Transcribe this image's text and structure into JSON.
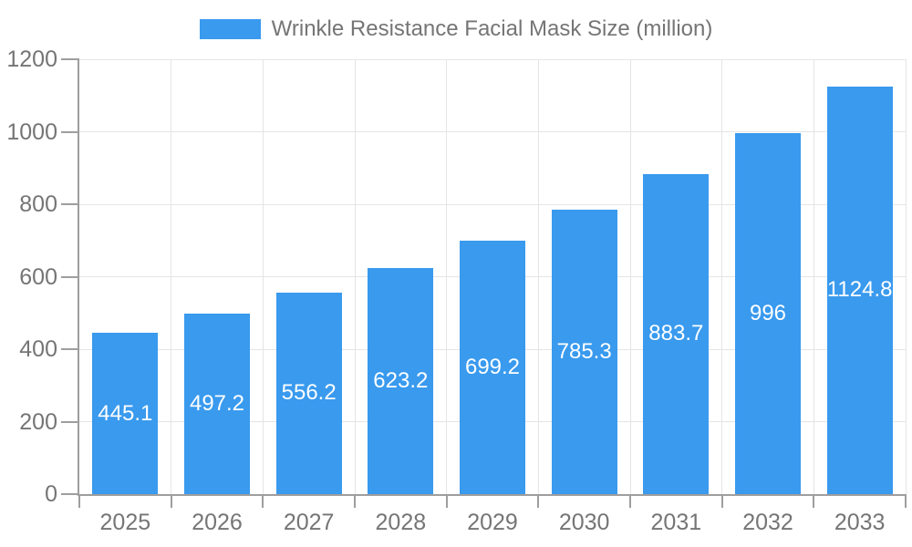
{
  "chart_data": {
    "type": "bar",
    "title": "Wrinkle Resistance Facial Mask Size (million)",
    "categories": [
      "2025",
      "2026",
      "2027",
      "2028",
      "2029",
      "2030",
      "2031",
      "2032",
      "2033"
    ],
    "values": [
      445.1,
      497.2,
      556.2,
      623.2,
      699.2,
      785.3,
      883.7,
      996,
      1124.8
    ],
    "value_labels": [
      "445.1",
      "497.2",
      "556.2",
      "623.2",
      "699.2",
      "785.3",
      "883.7",
      "996",
      "1124.8"
    ],
    "xlabel": "",
    "ylabel": "",
    "ylim": [
      0,
      1200
    ],
    "yticks": [
      0,
      200,
      400,
      600,
      800,
      1000,
      1200
    ],
    "grid": true,
    "legend_position": "top",
    "colors": {
      "bar": "#399AEE",
      "grid_line": "#e5e5e5",
      "axis_line": "#9e9e9e",
      "tick_text": "#757575",
      "legend_text": "#757575",
      "value_text": "#ffffff",
      "background": "#ffffff"
    }
  }
}
